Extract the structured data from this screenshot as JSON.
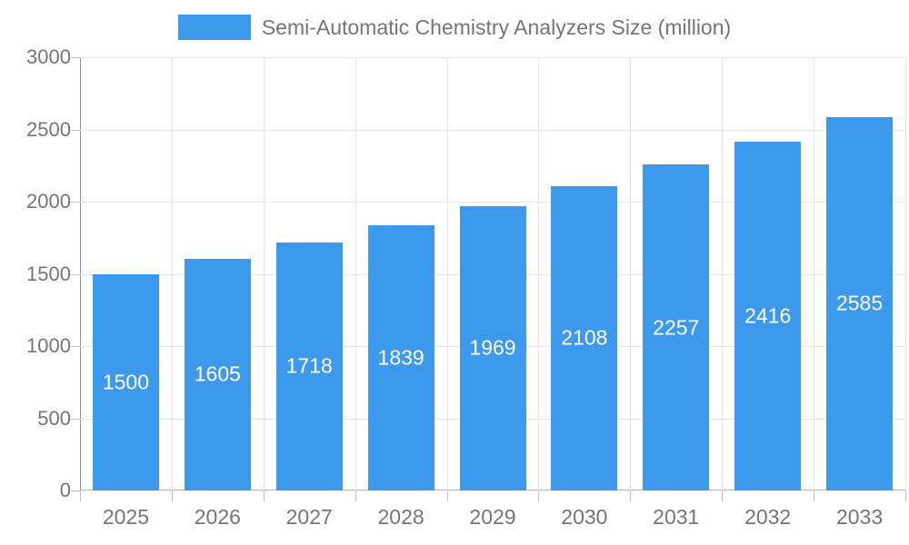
{
  "chart_data": {
    "type": "bar",
    "title": "Semi-Automatic Chemistry Analyzers Size (million)",
    "categories": [
      "2025",
      "2026",
      "2027",
      "2028",
      "2029",
      "2030",
      "2031",
      "2032",
      "2033"
    ],
    "values": [
      1500,
      1605,
      1718,
      1839,
      1969,
      2108,
      2257,
      2416,
      2585
    ],
    "xlabel": "",
    "ylabel": "",
    "ylim": [
      0,
      3000
    ],
    "ytick_step": 500,
    "ytick_labels": [
      "0",
      "500",
      "1000",
      "1500",
      "2000",
      "2500",
      "3000"
    ],
    "grid": true,
    "legend_position": "top-center",
    "bar_color": "#3d99eb",
    "bar_label_color": "#ffffff",
    "axis_text_color": "#757575"
  }
}
